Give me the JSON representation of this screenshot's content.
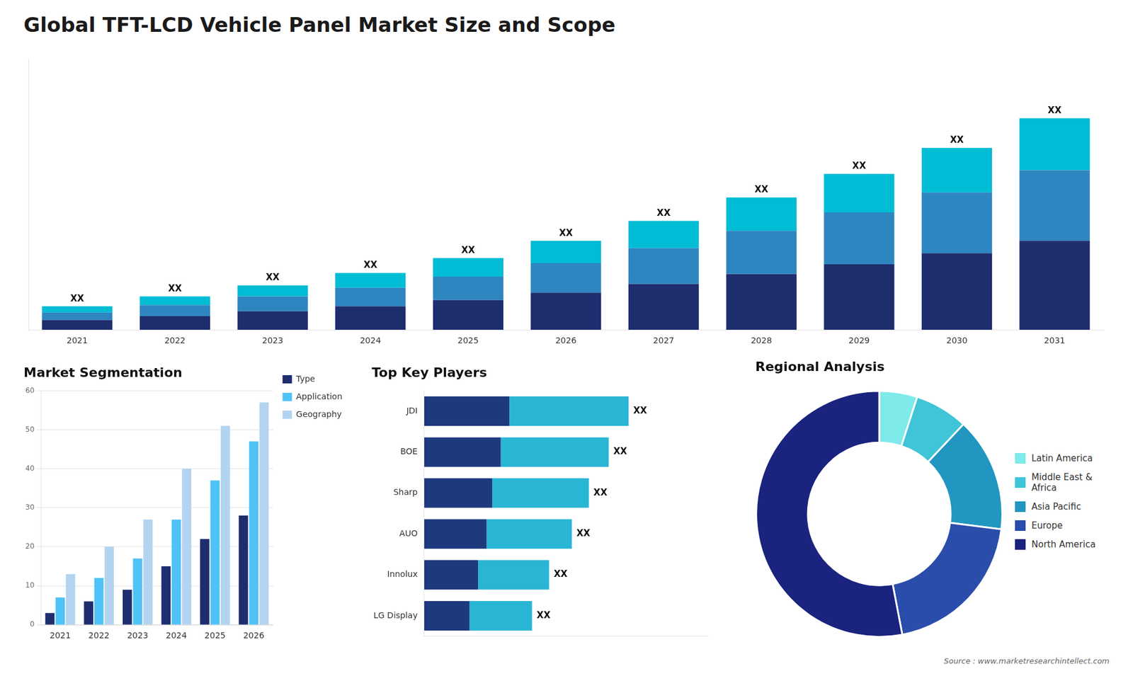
{
  "title": "Global TFT-LCD Vehicle Panel Market Size and Scope",
  "annotations": [
    "Source : www.marketresearchintellect.com"
  ],
  "chart_data": [
    {
      "type": "bar",
      "stacked": true,
      "categories": [
        "2021",
        "2022",
        "2023",
        "2024",
        "2025",
        "2026",
        "2027",
        "2028",
        "2029",
        "2030",
        "2031"
      ],
      "series": [
        {
          "color": "#1e2d6e",
          "values": [
            0.8,
            1.1,
            1.5,
            1.9,
            2.4,
            3.0,
            3.7,
            4.5,
            5.3,
            6.2,
            7.2
          ]
        },
        {
          "color": "#2e86c1",
          "values": [
            0.6,
            0.9,
            1.2,
            1.5,
            1.9,
            2.4,
            2.9,
            3.5,
            4.2,
            4.9,
            5.7
          ]
        },
        {
          "color": "#00bcd4",
          "values": [
            0.5,
            0.7,
            0.9,
            1.2,
            1.5,
            1.8,
            2.2,
            2.7,
            3.1,
            3.6,
            4.2
          ],
          "value_labels": [
            "XX",
            "XX",
            "XX",
            "XX",
            "XX",
            "XX",
            "XX",
            "XX",
            "XX",
            "XX",
            "XX"
          ]
        }
      ],
      "data_labels": true,
      "ylim": [
        0,
        21.888
      ],
      "grid": false,
      "tick_labels": "x"
    },
    {
      "type": "bar",
      "title": "Market Segmentation",
      "categories": [
        "2021",
        "2022",
        "2023",
        "2024",
        "2025",
        "2026"
      ],
      "series": [
        {
          "name": "Type",
          "color": "#1e2d6e",
          "values": [
            3,
            6,
            9,
            15,
            22,
            28
          ]
        },
        {
          "name": "Application",
          "color": "#4fc3f7",
          "values": [
            7,
            12,
            17,
            27,
            37,
            47
          ]
        },
        {
          "name": "Geography",
          "color": "#b3d4f0",
          "values": [
            13,
            20,
            27,
            40,
            51,
            57
          ]
        }
      ],
      "ylim": [
        0,
        60
      ],
      "yticks": [
        0,
        10,
        20,
        30,
        40,
        50,
        60
      ],
      "grid": true,
      "legend": "right"
    },
    {
      "type": "bar",
      "title": "Top Key Players",
      "orientation": "horizontal",
      "stacked": true,
      "categories": [
        "JDI",
        "BOE",
        "Sharp",
        "AUO",
        "Innolux",
        "LG Display"
      ],
      "series": [
        {
          "color": "#1e3a7e",
          "values": [
            0.3,
            0.27,
            0.24,
            0.22,
            0.19,
            0.16
          ]
        },
        {
          "color": "#29b6d4",
          "values": [
            0.42,
            0.38,
            0.34,
            0.3,
            0.25,
            0.22
          ],
          "value_labels": [
            "XX",
            "XX",
            "XX",
            "XX",
            "XX",
            "XX"
          ]
        }
      ],
      "data_labels": true,
      "xlim": [
        0,
        1.0
      ],
      "grid": false,
      "tick_labels": "y"
    },
    {
      "type": "doughnut",
      "title": "Regional Analysis",
      "categories": [
        "Latin America",
        "Middle East &\nAfrica",
        "Asia Pacific",
        "Europe",
        "North America"
      ],
      "values": [
        5,
        7,
        15,
        20,
        53
      ],
      "colors": [
        "#7eeaea",
        "#40c4d8",
        "#2196c0",
        "#2a4dab",
        "#1a237e"
      ],
      "legend": "right"
    }
  ]
}
